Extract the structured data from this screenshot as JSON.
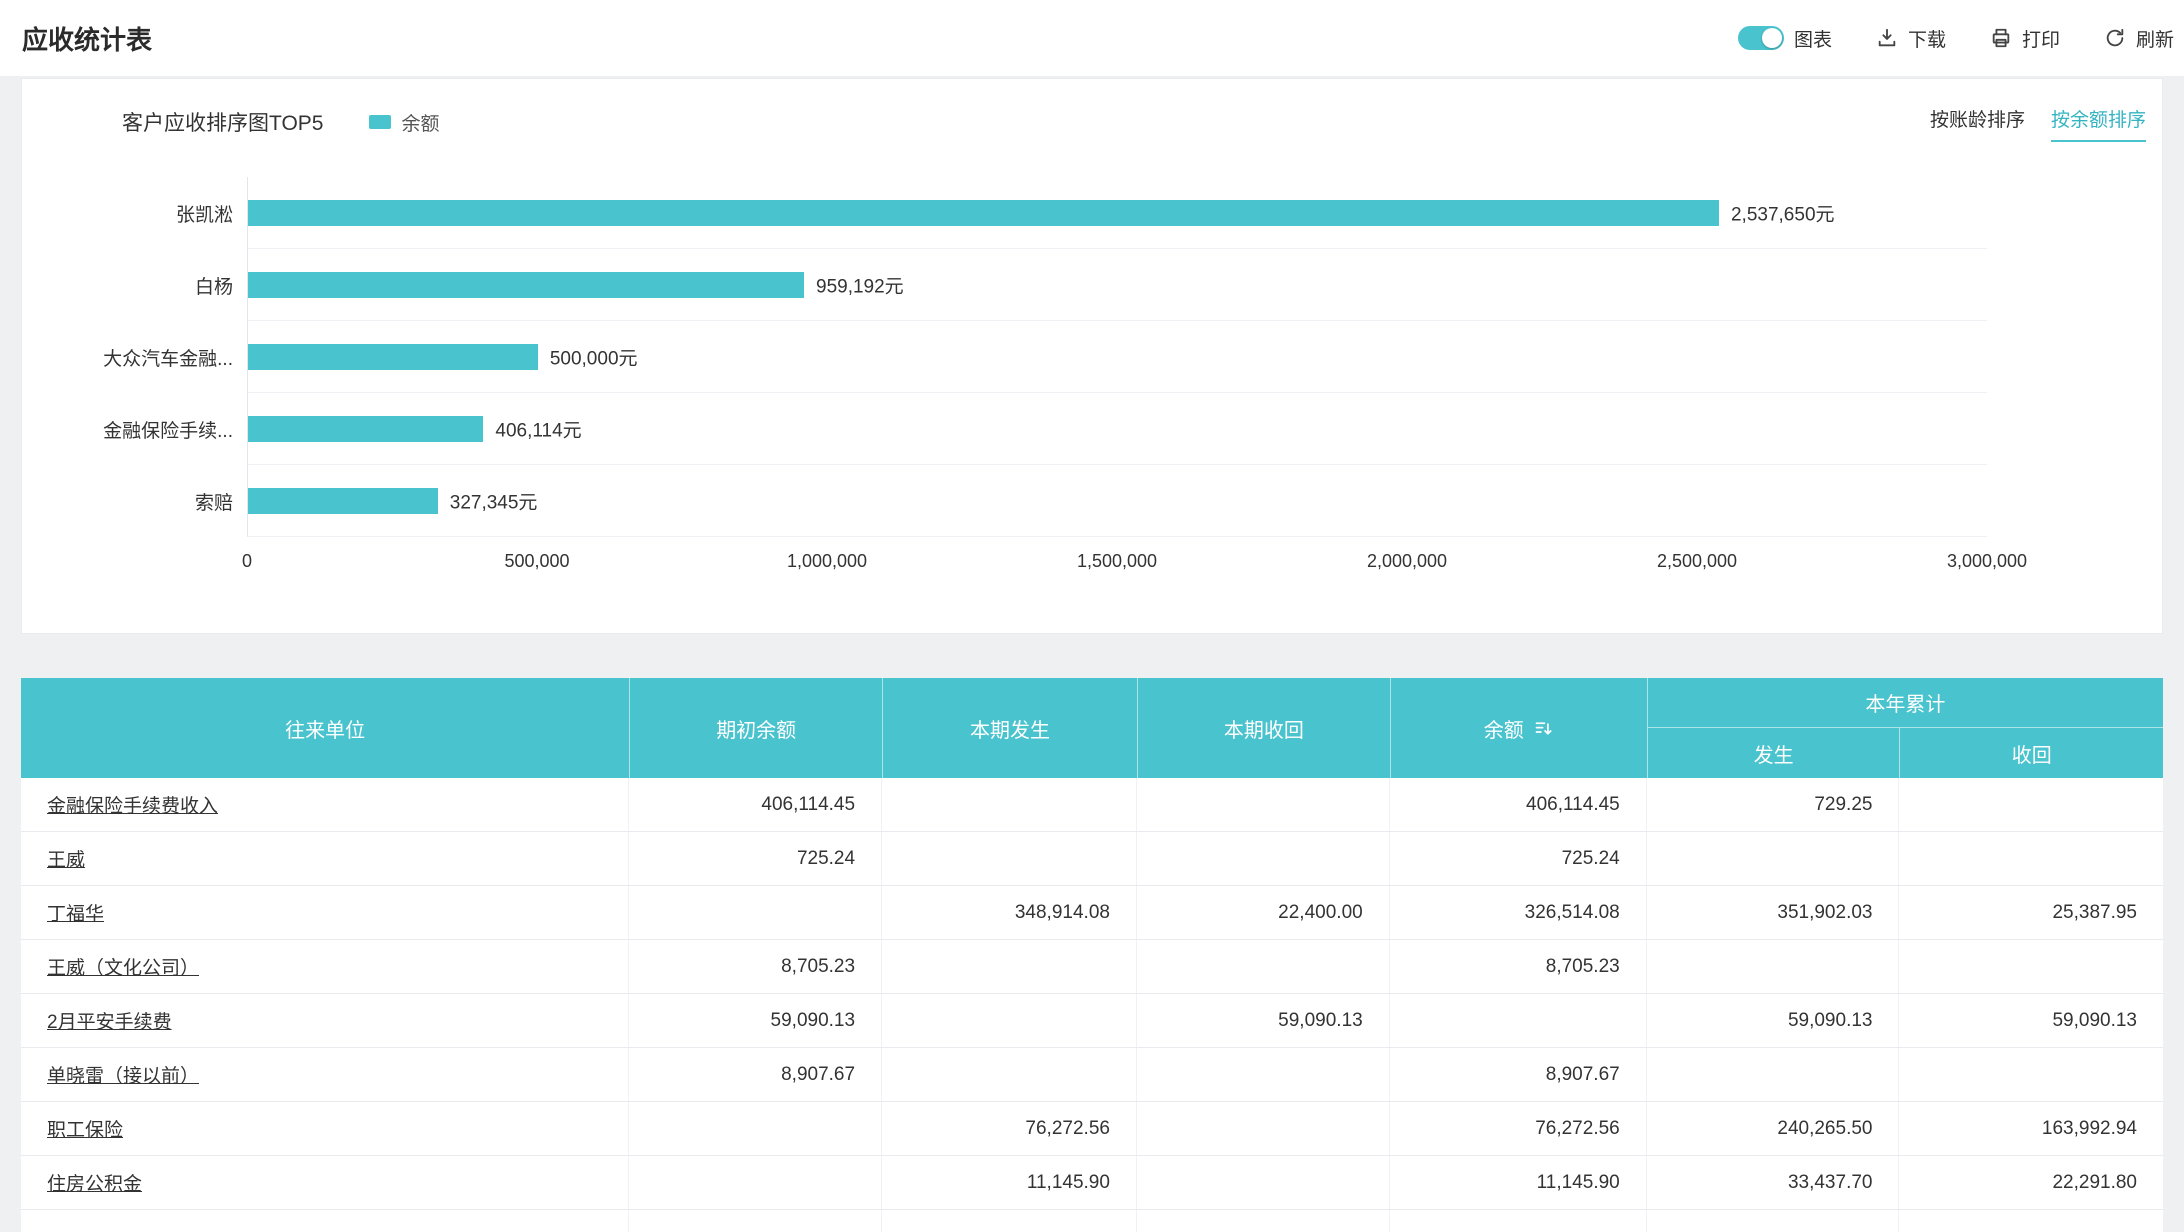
{
  "page": {
    "title": "应收统计表"
  },
  "toolbar": {
    "toggle_label": "图表",
    "download_label": "下载",
    "print_label": "打印",
    "refresh_label": "刷新"
  },
  "chart_panel": {
    "title": "客户应收排序图TOP5",
    "legend_label": "余额",
    "sort_by_aging": "按账龄排序",
    "sort_by_balance": "按余额排序"
  },
  "chart_data": {
    "type": "bar",
    "orientation": "horizontal",
    "title": "客户应收排序图TOP5",
    "series_name": "余额",
    "categories": [
      "张凯淞",
      "白杨",
      "大众汽车金融...",
      "金融保险手续...",
      "索赔"
    ],
    "values": [
      2537650,
      959192,
      500000,
      406114,
      327345
    ],
    "value_labels": [
      "2,537,650元",
      "959,192元",
      "500,000元",
      "406,114元",
      "327,345元"
    ],
    "xlim": [
      0,
      3000000
    ],
    "x_ticks": [
      "0",
      "500,000",
      "1,000,000",
      "1,500,000",
      "2,000,000",
      "2,500,000",
      "3,000,000"
    ],
    "bar_color": "#49c3cd",
    "grid": true,
    "legend_position": "top"
  },
  "table": {
    "headers": {
      "unit": "往来单位",
      "opening": "期初余额",
      "occurred": "本期发生",
      "received": "本期收回",
      "balance": "余额",
      "ytd_group": "本年累计",
      "ytd_occurred": "发生",
      "ytd_received": "收回"
    },
    "rows": [
      {
        "name": "金融保险手续费收入",
        "opening": "406,114.45",
        "occurred": "",
        "received": "",
        "balance": "406,114.45",
        "ytd_occurred": "729.25",
        "ytd_received": ""
      },
      {
        "name": "王威",
        "opening": "725.24",
        "occurred": "",
        "received": "",
        "balance": "725.24",
        "ytd_occurred": "",
        "ytd_received": ""
      },
      {
        "name": "丁福华",
        "opening": "",
        "occurred": "348,914.08",
        "received": "22,400.00",
        "balance": "326,514.08",
        "ytd_occurred": "351,902.03",
        "ytd_received": "25,387.95"
      },
      {
        "name": "王威（文化公司）",
        "opening": "8,705.23",
        "occurred": "",
        "received": "",
        "balance": "8,705.23",
        "ytd_occurred": "",
        "ytd_received": ""
      },
      {
        "name": "2月平安手续费",
        "opening": "59,090.13",
        "occurred": "",
        "received": "59,090.13",
        "balance": "",
        "ytd_occurred": "59,090.13",
        "ytd_received": "59,090.13"
      },
      {
        "name": "单晓雷（接以前）",
        "opening": "8,907.67",
        "occurred": "",
        "received": "",
        "balance": "8,907.67",
        "ytd_occurred": "",
        "ytd_received": ""
      },
      {
        "name": "职工保险",
        "opening": "",
        "occurred": "76,272.56",
        "received": "",
        "balance": "76,272.56",
        "ytd_occurred": "240,265.50",
        "ytd_received": "163,992.94"
      },
      {
        "name": "住房公积金",
        "opening": "",
        "occurred": "11,145.90",
        "received": "",
        "balance": "11,145.90",
        "ytd_occurred": "33,437.70",
        "ytd_received": "22,291.80"
      }
    ]
  },
  "colors": {
    "accent": "#49c3cd",
    "table_header_bg": "#49c3cd",
    "bar_color": "#49c3cd"
  }
}
